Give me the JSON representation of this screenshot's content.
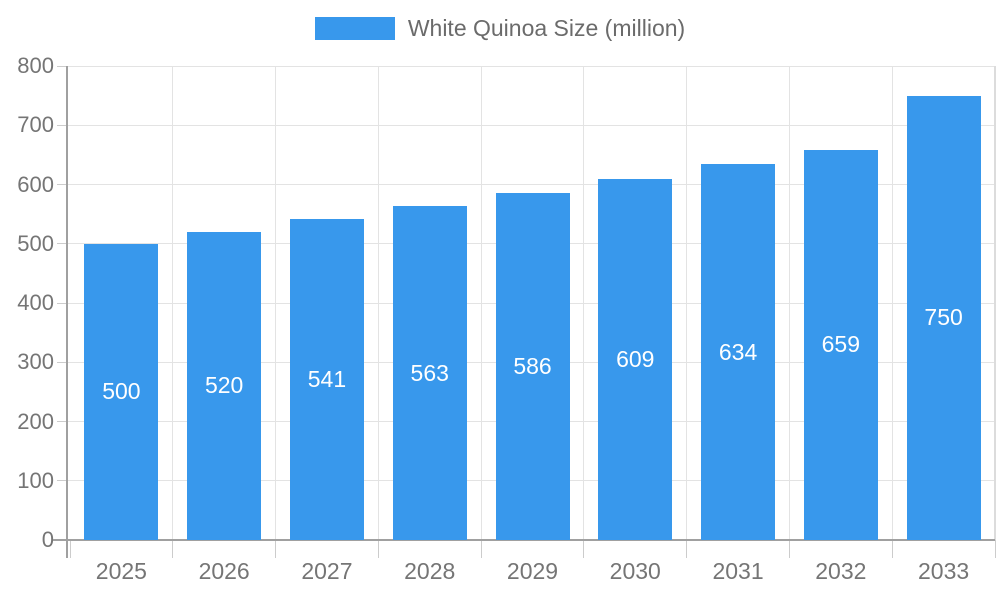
{
  "legend": {
    "label": "White Quinoa Size (million)"
  },
  "colors": {
    "bar": "#3898ec",
    "value_label": "#ffffff",
    "axis_line": "#a0a0a0",
    "gridline": "#e3e3e3",
    "tick": "#cccccc",
    "right_border": "#dcdcdc",
    "axis_text": "#757575",
    "legend_text": "#6b6b6b",
    "background": "#ffffff"
  },
  "chart_data": {
    "type": "bar",
    "title": "White Quinoa Size (million)",
    "categories": [
      "2025",
      "2026",
      "2027",
      "2028",
      "2029",
      "2030",
      "2031",
      "2032",
      "2033"
    ],
    "series": [
      {
        "name": "White Quinoa Size (million)",
        "values": [
          500,
          520,
          541,
          563,
          586,
          609,
          634,
          659,
          750
        ]
      }
    ],
    "values": [
      500,
      520,
      541,
      563,
      586,
      609,
      634,
      659,
      750
    ],
    "value_labels_shown": true,
    "value_label_position": "center-inside",
    "xlabel": "",
    "ylabel": "",
    "ylim": [
      0,
      800
    ],
    "ytick_interval": 100,
    "yticks": [
      0,
      100,
      200,
      300,
      400,
      500,
      600,
      700,
      800
    ],
    "grid": true,
    "legend_position": "top"
  }
}
